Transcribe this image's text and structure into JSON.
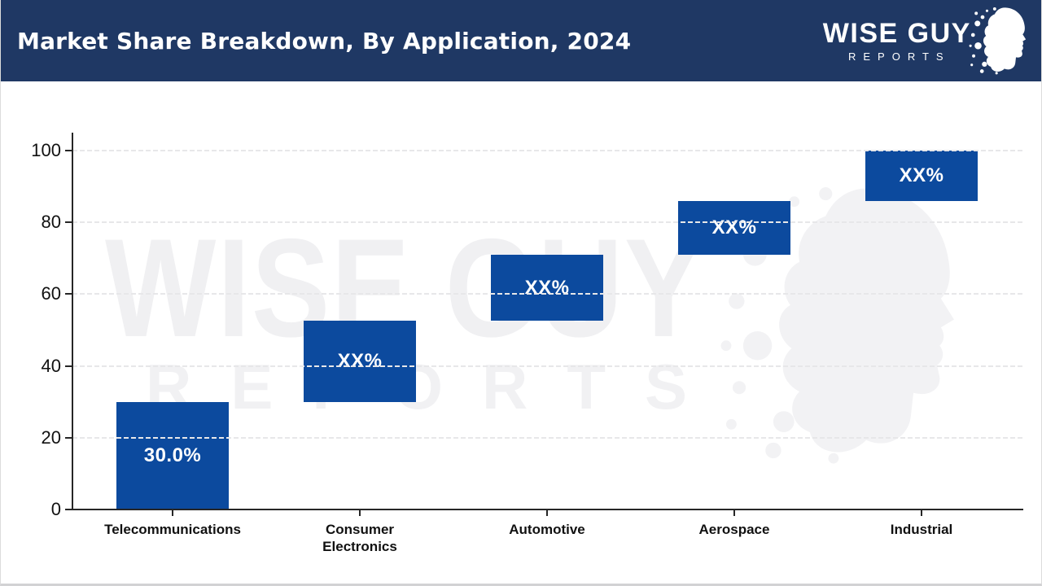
{
  "header": {
    "title": "Market Share Breakdown, By Application, 2024",
    "logo": {
      "line1": "WISE GUY",
      "line2": "REPORTS"
    }
  },
  "watermark": {
    "line1": "WISE GUY",
    "line2": "REPORTS"
  },
  "chart_data": {
    "type": "bar",
    "subtype": "waterfall",
    "title": "Market Share Breakdown, By Application, 2024",
    "categories": [
      "Telecommunications",
      "Consumer\nElectronics",
      "Automotive",
      "Aerospace",
      "Industrial"
    ],
    "segments": [
      {
        "category": "Telecommunications",
        "start": 0,
        "end": 30,
        "value_label": "30.0%"
      },
      {
        "category": "Consumer Electronics",
        "start": 30,
        "end": 52.5,
        "value_label": "XX%"
      },
      {
        "category": "Automotive",
        "start": 52.5,
        "end": 71,
        "value_label": "XX%"
      },
      {
        "category": "Aerospace",
        "start": 71,
        "end": 86,
        "value_label": "XX%"
      },
      {
        "category": "Industrial",
        "start": 86,
        "end": 100,
        "value_label": "XX%"
      }
    ],
    "y_ticks": [
      0,
      20,
      40,
      60,
      80,
      100
    ],
    "ylim": [
      0,
      105
    ],
    "xlabel": "",
    "ylabel": "",
    "grid": true,
    "grid_style": "dashed",
    "legend": false
  },
  "colors": {
    "header_bg": "#1f3864",
    "bar": "#0c4a9e",
    "grid": "#e7e7e9",
    "axis": "#262626",
    "watermark": "#f0f0f2",
    "value_label": "#ffffff",
    "tick_label": "#111111"
  }
}
